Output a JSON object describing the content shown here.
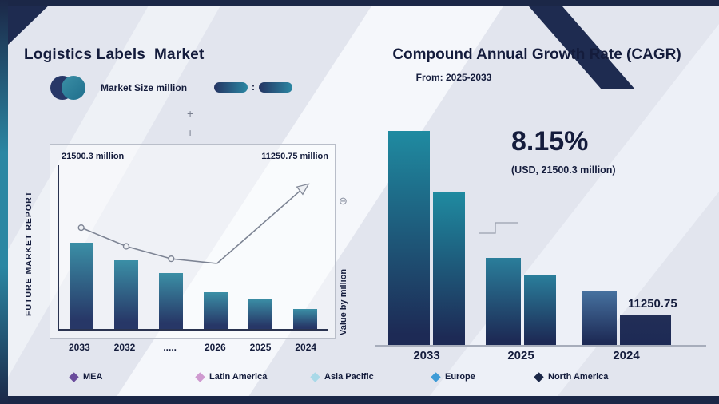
{
  "page": {
    "left": {
      "title": "Logistics Labels  Market",
      "legend_label": "Market Size million",
      "watermark": "FUTURE MARKET REPORT",
      "ylabel": "Value by million",
      "top_left_value": "21500.3 million",
      "top_right_value": "11250.75 million"
    },
    "right": {
      "title": "Compound Annual Growth Rate (CAGR)",
      "subtitle": "From: 2025-2033",
      "cagr": "8.15%",
      "cagr_note": "(USD, 21500.3 million)",
      "end_value_label": "11250.75"
    },
    "decorations": {
      "plus": "+",
      "circle_minus": "⊖",
      "colon": ":"
    },
    "legend": [
      {
        "label": "MEA",
        "color": "#6a4c9c"
      },
      {
        "label": "Latin America",
        "color": "#cf9ad0"
      },
      {
        "label": "Asia Pacific",
        "color": "#a9d9e8"
      },
      {
        "label": "Europe",
        "color": "#3e9bd6"
      },
      {
        "label": "North America",
        "color": "#1b2747"
      }
    ]
  },
  "colors": {
    "navy": "#1d2a55",
    "teal": "#2b87a3",
    "text": "#141c3c",
    "background": "#e2e5ee"
  },
  "chart_data": [
    {
      "type": "bar",
      "title": "Logistics Labels Market - Market Size million",
      "categories": [
        "2033",
        "2032",
        ".....",
        "2026",
        "2025",
        "2024"
      ],
      "values": [
        21500.3,
        null,
        null,
        null,
        null,
        11250.75
      ],
      "relative_heights": [
        1.0,
        0.8,
        0.65,
        0.43,
        0.35,
        0.23
      ],
      "annotations": [
        "21500.3 million",
        "11250.75 million"
      ],
      "xlabel": "",
      "ylabel": "Value by million",
      "note": "bars decline from 2033 to 2024; trend line dips across first bars then arrow rises to upper right"
    },
    {
      "type": "bar",
      "title": "Compound Annual Growth Rate (CAGR) From: 2025-2033",
      "categories": [
        "2033",
        "2025",
        "2024"
      ],
      "series": [
        {
          "name": "primary",
          "relative_heights": [
            1.0,
            0.405,
            0.25
          ]
        },
        {
          "name": "secondary",
          "relative_heights": [
            0.715,
            0.325,
            0.14
          ]
        }
      ],
      "cagr_percent": 8.15,
      "labeled_value": {
        "category": "2024",
        "text": "11250.75"
      }
    }
  ]
}
